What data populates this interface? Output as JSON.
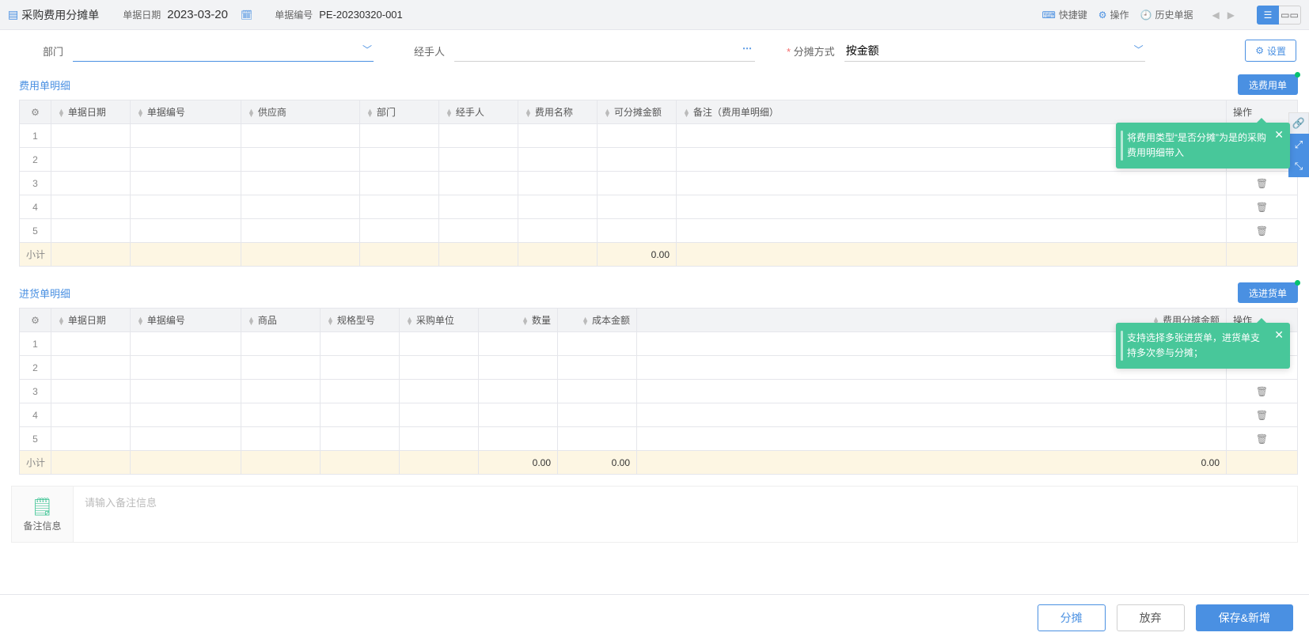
{
  "header": {
    "title": "采购费用分摊单",
    "date_label": "单据日期",
    "date_value": "2023-03-20",
    "no_label": "单据编号",
    "no_value": "PE-20230320-001",
    "actions": {
      "shortcut": "快捷键",
      "operate": "操作",
      "history": "历史单据"
    }
  },
  "form": {
    "dept_label": "部门",
    "dept_value": "",
    "handler_label": "经手人",
    "handler_value": "",
    "method_label": "分摊方式",
    "method_value": "按金额",
    "settings_btn": "设置"
  },
  "expense_section": {
    "title": "费用单明细",
    "select_btn": "选费用单",
    "columns": {
      "date": "单据日期",
      "no": "单据编号",
      "supplier": "供应商",
      "dept": "部门",
      "handler": "经手人",
      "expense_name": "费用名称",
      "allocatable": "可分摊金额",
      "remark": "备注（费用单明细）",
      "op": "操作"
    },
    "col_widths": {
      "gear": 40,
      "date": 100,
      "no": 140,
      "supplier": 150,
      "dept": 100,
      "handler": 100,
      "expense_name": 100,
      "allocatable": 100,
      "remark": 620,
      "op": 90
    },
    "rows": [
      1,
      2,
      3,
      4,
      5
    ],
    "subtotal_label": "小计",
    "subtotal_allocatable": "0.00",
    "tip": "将费用类型“是否分摊”为是的采购费用明细带入"
  },
  "purchase_section": {
    "title": "进货单明细",
    "select_btn": "选进货单",
    "columns": {
      "date": "单据日期",
      "no": "单据编号",
      "product": "商品",
      "spec": "规格型号",
      "unit": "采购单位",
      "qty": "数量",
      "cost": "成本金额",
      "alloc_amount": "费用分摊金额",
      "op": "操作"
    },
    "col_widths": {
      "gear": 40,
      "date": 100,
      "no": 140,
      "product": 100,
      "spec": 100,
      "unit": 100,
      "qty": 100,
      "cost": 100,
      "alloc": 660,
      "op": 90
    },
    "rows": [
      1,
      2,
      3,
      4,
      5
    ],
    "subtotal_label": "小计",
    "subtotal_qty": "0.00",
    "subtotal_cost": "0.00",
    "subtotal_alloc": "0.00",
    "tip": "支持选择多张进货单，进货单支持多次参与分摊；"
  },
  "remarks": {
    "label": "备注信息",
    "placeholder": "请输入备注信息"
  },
  "footer": {
    "allocate": "分摊",
    "discard": "放弃",
    "save_new": "保存&新增"
  },
  "colors": {
    "primary": "#4a90e2",
    "tip_bg": "#48c79a",
    "subtotal_bg": "#fdf6e3",
    "header_bg": "#f2f3f5",
    "border": "#e5e6eb"
  }
}
